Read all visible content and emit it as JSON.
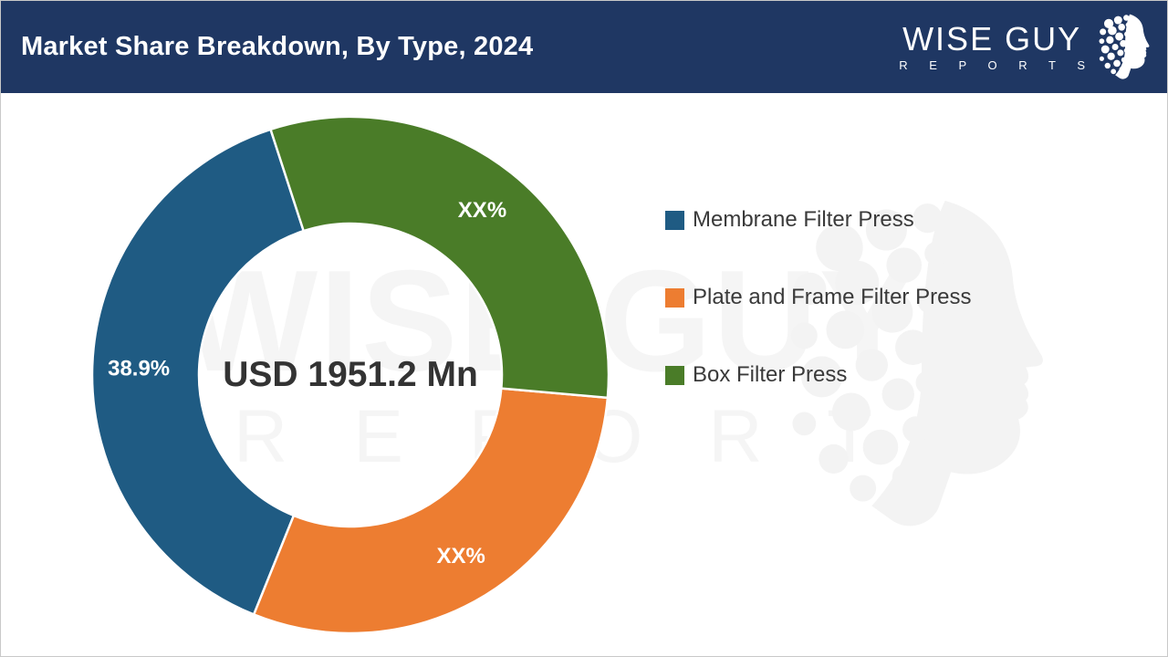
{
  "header": {
    "title": "Market Share Breakdown, By Type, 2024",
    "logo_line1": "WISE GUY",
    "logo_line2": "R E P O R T S"
  },
  "watermark": {
    "line1": "WISE GUY",
    "line2": "REPORTS"
  },
  "chart_data": {
    "type": "pie",
    "subtype": "donut",
    "title": "Market Share Breakdown, By Type, 2024",
    "center_label": "USD 1951.2 Mn",
    "start_angle_deg": 108,
    "direction": "counterclockwise",
    "outer_radius": 283,
    "inner_radius": 166,
    "label_radius": 232,
    "slices": [
      {
        "label": "Membrane Filter Press",
        "display_value": "38.9%",
        "share_pct": 38.9,
        "color": "#1F5B83"
      },
      {
        "label": "Plate and Frame Filter Press",
        "display_value": "XX%",
        "share_pct": 29.7,
        "color": "#ED7D31"
      },
      {
        "label": "Box Filter Press",
        "display_value": "XX%",
        "share_pct": 31.4,
        "color": "#4A7C28"
      }
    ],
    "legend_position": "right",
    "legend_entries": [
      "Membrane Filter Press",
      "Plate and Frame Filter Press",
      "Box Filter Press"
    ]
  },
  "colors": {
    "header_bg": "#1F3763",
    "center_text": "#333333",
    "legend_text": "#3A3A3A",
    "watermark": "#F5F5F5",
    "page_border": "#C9C9C9",
    "slice_gap": "#FFFFFF"
  }
}
